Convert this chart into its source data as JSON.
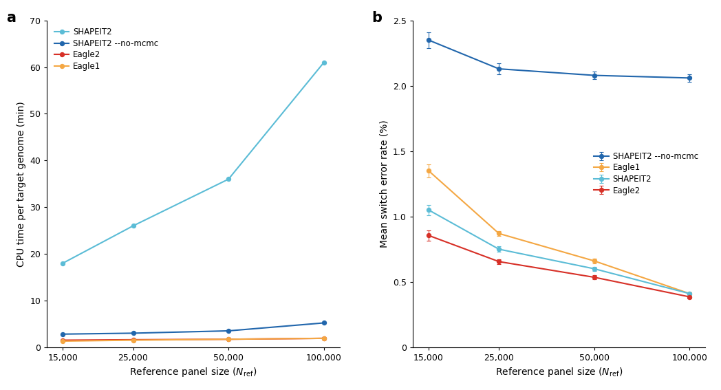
{
  "x_values": [
    15000,
    25000,
    50000,
    100000
  ],
  "x_tick_labels": [
    "15,000",
    "25,000",
    "50,000",
    "100,000"
  ],
  "panel_a": {
    "title": "a",
    "ylabel": "CPU time per target genome (min)",
    "ylim": [
      0,
      70
    ],
    "yticks": [
      0,
      10,
      20,
      30,
      40,
      50,
      60,
      70
    ],
    "series": {
      "SHAPEIT2": {
        "y": [
          18,
          26,
          36,
          61
        ],
        "color": "#5bbcd6",
        "marker": "o",
        "markersize": 4.5,
        "linewidth": 1.5
      },
      "SHAPEIT2 --no-mcmc": {
        "y": [
          2.8,
          3.0,
          3.5,
          5.2
        ],
        "color": "#2166ac",
        "marker": "o",
        "markersize": 4.5,
        "linewidth": 1.5
      },
      "Eagle2": {
        "y": [
          1.5,
          1.6,
          1.7,
          1.9
        ],
        "color": "#d73027",
        "marker": "o",
        "markersize": 4.5,
        "linewidth": 1.5
      },
      "Eagle1": {
        "y": [
          1.3,
          1.5,
          1.7,
          1.9
        ],
        "color": "#f4a743",
        "marker": "o",
        "markersize": 4.5,
        "linewidth": 1.5
      }
    },
    "legend_order": [
      "SHAPEIT2",
      "SHAPEIT2 --no-mcmc",
      "Eagle2",
      "Eagle1"
    ]
  },
  "panel_b": {
    "title": "b",
    "ylabel": "Mean switch error rate (%)",
    "ylim": [
      0,
      2.5
    ],
    "yticks": [
      0,
      0.5,
      1.0,
      1.5,
      2.0,
      2.5
    ],
    "series": {
      "SHAPEIT2 --no-mcmc": {
        "y": [
          2.35,
          2.13,
          2.08,
          2.06
        ],
        "yerr": [
          0.06,
          0.04,
          0.03,
          0.03
        ],
        "color": "#2166ac",
        "marker": "o",
        "markersize": 4.5,
        "linewidth": 1.5
      },
      "Eagle1": {
        "y": [
          1.35,
          0.87,
          0.66,
          0.41
        ],
        "yerr": [
          0.05,
          0.02,
          0.02,
          0.01
        ],
        "color": "#f4a743",
        "marker": "o",
        "markersize": 4.5,
        "linewidth": 1.5
      },
      "SHAPEIT2": {
        "y": [
          1.05,
          0.75,
          0.6,
          0.41
        ],
        "yerr": [
          0.04,
          0.02,
          0.015,
          0.01
        ],
        "color": "#5bbcd6",
        "marker": "o",
        "markersize": 4.5,
        "linewidth": 1.5
      },
      "Eagle2": {
        "y": [
          0.855,
          0.655,
          0.535,
          0.385
        ],
        "yerr": [
          0.04,
          0.02,
          0.015,
          0.01
        ],
        "color": "#d73027",
        "marker": "o",
        "markersize": 4.5,
        "linewidth": 1.5
      }
    },
    "legend_order": [
      "SHAPEIT2 --no-mcmc",
      "Eagle1",
      "SHAPEIT2",
      "Eagle2"
    ]
  },
  "background_color": "#ffffff",
  "label_fontsize": 10,
  "tick_fontsize": 9,
  "legend_fontsize": 8.5,
  "panel_label_fontsize": 15
}
